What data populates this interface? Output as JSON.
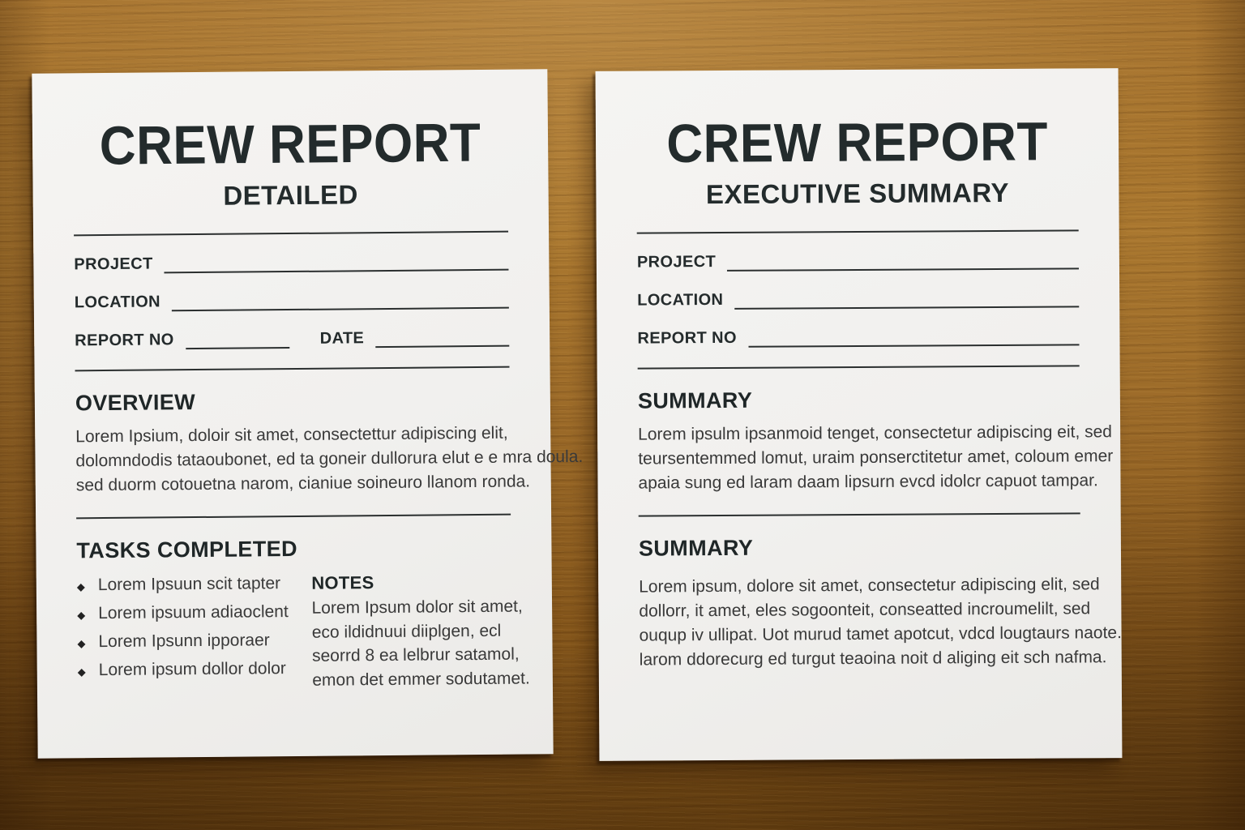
{
  "ink_color": "#242b2c",
  "paper_color": "#f2f1ef",
  "wood_colors": {
    "light": "#ab7930",
    "dark": "#6a4311"
  },
  "documents": [
    {
      "title": "CREW REPORT",
      "subtitle": "DETAILED",
      "fields": {
        "project_label": "PROJECT",
        "location_label": "LOCATION",
        "report_no_label": "REPORT NO",
        "date_label": "DATE"
      },
      "overview": {
        "heading": "OVERVIEW",
        "lines": [
          "Lorem Ipsium, doloir sit amet, consectettur adipiscing elit,",
          "dolomndodis tataoubonet, ed ta goneir dullorura elut e e mra doula.",
          "sed duorm cotouetna narom, cianiue soineuro llanom ronda."
        ]
      },
      "tasks": {
        "heading": "TASKS COMPLETED",
        "marker": "◆",
        "items": [
          "Lorem Ipsuun scit tapter",
          "Lorem ipsuum adiaoclent",
          "Lorem Ipsunn ipporaer",
          "Lorem ipsum dollor dolor"
        ]
      },
      "notes": {
        "heading": "NOTES",
        "lines": [
          "Lorem Ipsum dolor sit amet,",
          "eco ildidnuui diiplgen, ecl",
          "seorrd 8 ea lelbrur satamol,",
          "emon det emmer sodutamet."
        ]
      }
    },
    {
      "title": "CREW REPORT",
      "subtitle": "EXECUTIVE SUMMARY",
      "fields": {
        "project_label": "PROJECT",
        "location_label": "LOCATION",
        "report_no_label": "REPORT NO"
      },
      "summary1": {
        "heading": "SUMMARY",
        "lines": [
          "Lorem ipsulm ipsanmoid tenget, consectetur adipiscing eit, sed",
          "teursentemmed lomut, uraim ponserctitetur amet, coloum emer",
          "apaia sung ed laram daam lipsurn evcd idolcr capuot tampar."
        ]
      },
      "summary2": {
        "heading": "SUMMARY",
        "lines": [
          "Lorem ipsum, dolore sit amet, consectetur adipiscing elit, sed",
          "dollorr, it amet, eles sogoonteit, conseatted incroumelilt, sed",
          "ouqup iv ullipat. Uot murud tamet apotcut, vdcd lougtaurs naote.",
          "larom ddorecurg ed turgut teaoina noit d aliging eit sch nafma."
        ]
      }
    }
  ]
}
